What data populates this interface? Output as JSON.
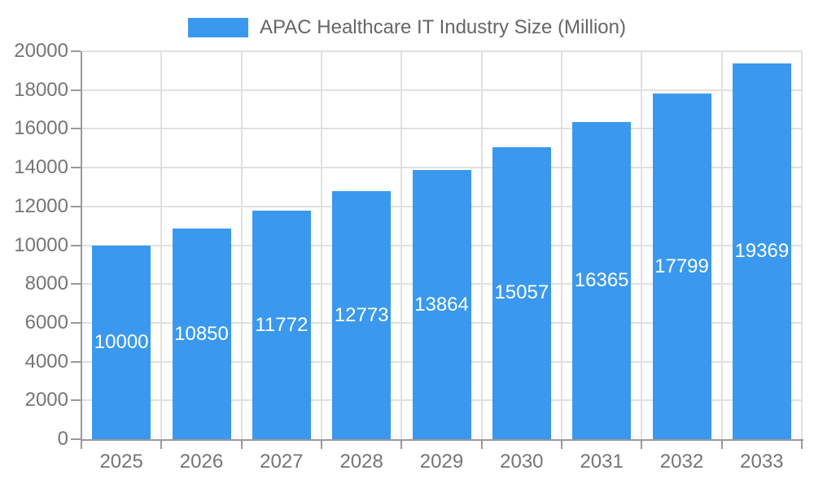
{
  "legend": {
    "label": "APAC Healthcare IT Industry Size (Million)"
  },
  "chart_data": {
    "type": "bar",
    "title": "APAC Healthcare IT Industry Size (Million)",
    "categories": [
      "2025",
      "2026",
      "2027",
      "2028",
      "2029",
      "2030",
      "2031",
      "2032",
      "2033"
    ],
    "series": [
      {
        "name": "APAC Healthcare IT Industry Size (Million)",
        "values": [
          10000,
          10850,
          11772,
          12773,
          13864,
          15057,
          16365,
          17799,
          19369
        ]
      }
    ],
    "value_labels_shown": true,
    "value_label_position": "inside-center",
    "xlabel": "",
    "ylabel": "",
    "ylim": [
      0,
      20000
    ],
    "y_tick_step": 2000,
    "y_tick_labels": [
      "0",
      "2000",
      "4000",
      "6000",
      "8000",
      "10000",
      "12000",
      "14000",
      "16000",
      "18000",
      "20000"
    ],
    "grid": true,
    "legend_position": "top-center"
  },
  "colors": {
    "bar": "#3A99EE",
    "gridline": "#E0E0E0",
    "axis_line": "#999999",
    "tick_label": "#757575",
    "legend_text": "#666666",
    "value_label": "#FFFFFF",
    "background": "#FFFFFF"
  }
}
